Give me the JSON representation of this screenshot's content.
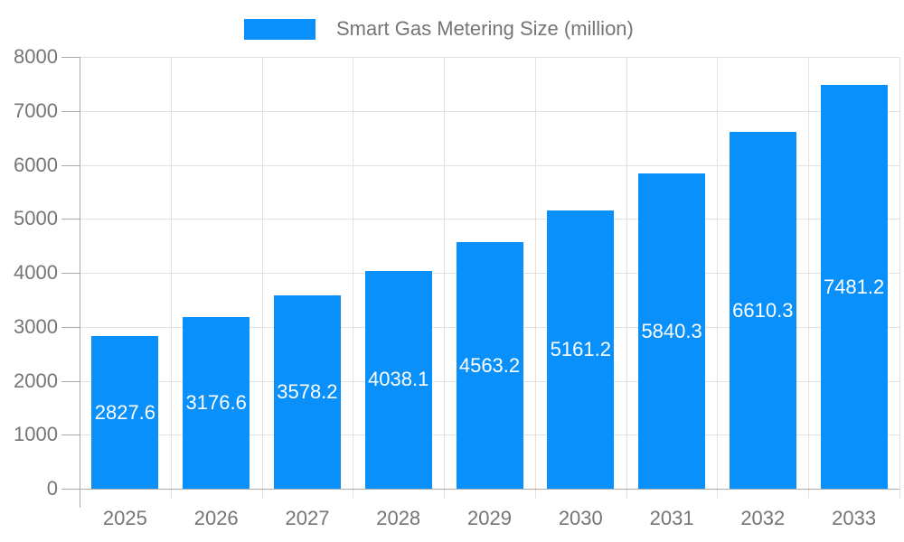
{
  "legend": {
    "label": "Smart Gas Metering Size (million)"
  },
  "chart_data": {
    "type": "bar",
    "title": "Smart Gas Metering Size (million)",
    "series_name": "Smart Gas Metering Size (million)",
    "categories": [
      "2025",
      "2026",
      "2027",
      "2028",
      "2029",
      "2030",
      "2031",
      "2032",
      "2033"
    ],
    "values": [
      2827.6,
      3176.6,
      3578.2,
      4038.1,
      4563.2,
      5161.2,
      5840.3,
      6610.3,
      7481.2
    ],
    "bar_labels": [
      "2827.6",
      "3176.6",
      "3578.2",
      "4038.1",
      "4563.2",
      "5161.2",
      "5840.3",
      "6610.3",
      "7481.2"
    ],
    "y_tick_labels": [
      "0",
      "1000",
      "2000",
      "3000",
      "4000",
      "5000",
      "6000",
      "7000",
      "8000"
    ],
    "xlabel": "",
    "ylabel": "",
    "ylim": [
      0,
      8000
    ],
    "ytick_step": 1000,
    "grid": true,
    "legend_position": "top",
    "colors": {
      "bar": "#0990FA",
      "bar_label_text": "#FFFFFF",
      "axis_text": "#757575",
      "gridline": "#E2E2E2",
      "axis_line": "#ABABAB"
    }
  }
}
